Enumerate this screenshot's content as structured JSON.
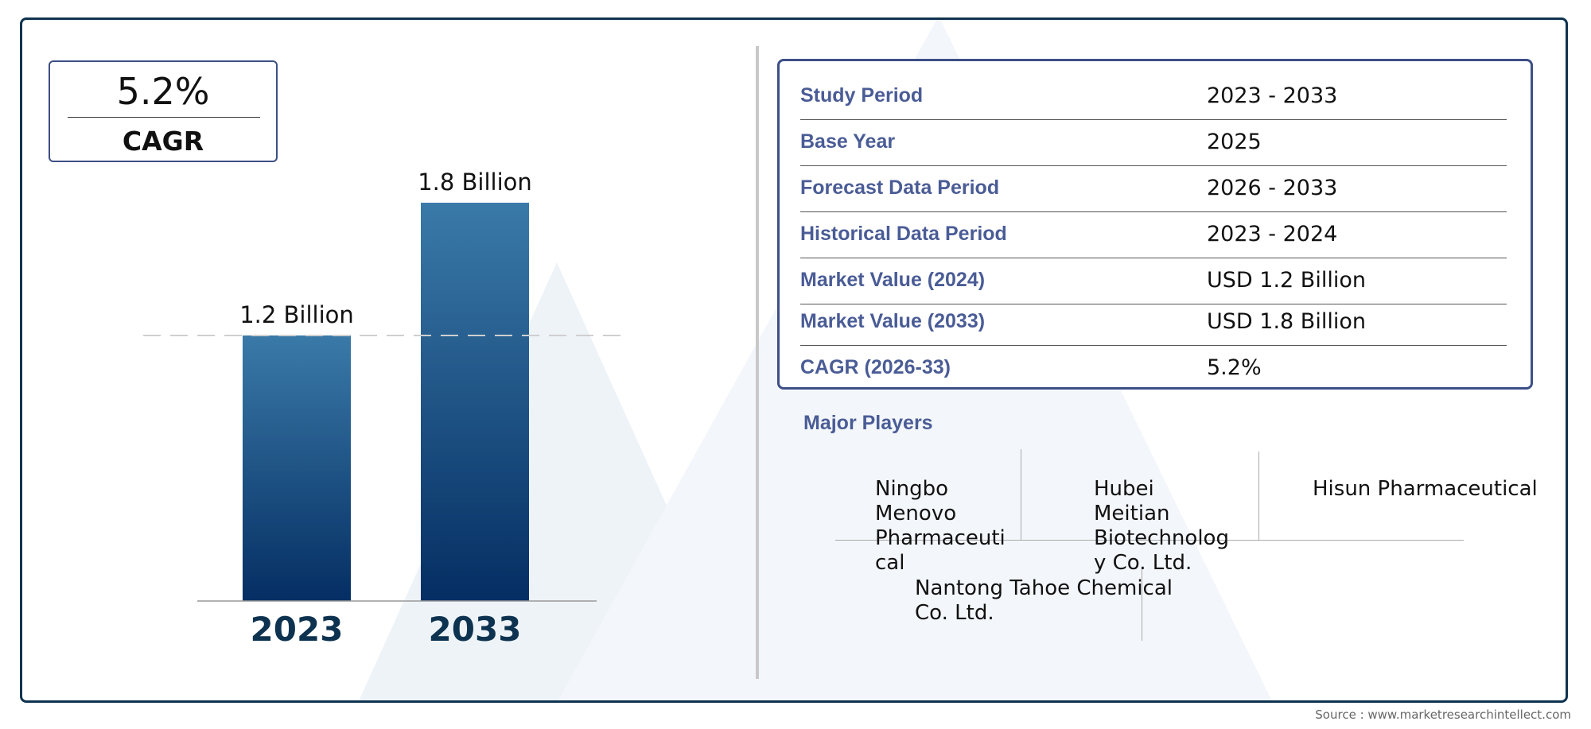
{
  "cagr": {
    "value": "5.2%",
    "label": "CAGR"
  },
  "chart_data": {
    "type": "bar",
    "categories": [
      "2023",
      "2033"
    ],
    "values": [
      1.2,
      1.8
    ],
    "data_labels": [
      "1.2 Billion",
      "1.8 Billion"
    ],
    "unit": "Billion",
    "ylim": [
      0,
      2
    ],
    "colors": {
      "bar_top": "#3a7aa8",
      "bar_bottom": "#052e63",
      "category_text": "#0e3350"
    }
  },
  "info_table": [
    {
      "key": "Study Period",
      "value": "2023 - 2033"
    },
    {
      "key": "Base Year",
      "value": "2025"
    },
    {
      "key": "Forecast Data Period",
      "value": "2026 - 2033"
    },
    {
      "key": "Historical Data Period",
      "value": "2023 - 2024"
    },
    {
      "key": "Market Value (2024)",
      "value": "USD 1.2 Billion"
    },
    {
      "key": "Market Value (2033)",
      "value": "USD 1.8 Billion"
    },
    {
      "key": "CAGR (2026-33)",
      "value": "5.2%"
    }
  ],
  "players": {
    "title": "Major Players",
    "items": [
      [
        "Ningbo",
        "Menovo",
        "Pharmaceuti",
        "cal"
      ],
      [
        "Hubei",
        "Meitian",
        "Biotechnolog",
        "y Co. Ltd."
      ],
      [
        "Hisun Pharmaceutical"
      ],
      [
        "Nantong Tahoe Chemical",
        "Co. Ltd."
      ]
    ]
  },
  "source": "Source : www.marketresearchintellect.com"
}
